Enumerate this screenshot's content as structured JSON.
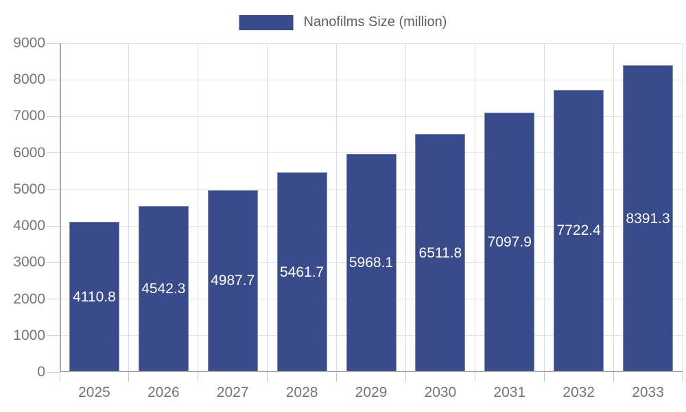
{
  "chart_data": {
    "type": "bar",
    "categories": [
      "2025",
      "2026",
      "2027",
      "2028",
      "2029",
      "2030",
      "2031",
      "2032",
      "2033"
    ],
    "series": [
      {
        "name": "Nanofilms Size (million)",
        "values": [
          4110.8,
          4542.3,
          4987.7,
          5461.7,
          5968.1,
          6511.8,
          7097.9,
          7722.4,
          8391.3
        ]
      }
    ],
    "value_labels": [
      "4110.8",
      "4542.3",
      "4987.7",
      "5461.7",
      "5968.1",
      "6511.8",
      "7097.9",
      "7722.4",
      "8391.3"
    ],
    "ylim": [
      0,
      9000
    ],
    "yticks": [
      0,
      1000,
      2000,
      3000,
      4000,
      5000,
      6000,
      7000,
      8000,
      9000
    ],
    "xlabel": "",
    "ylabel": "",
    "grid": true,
    "legend_position": "top-center",
    "bar_color": "#3a4b8c",
    "value_label_color": "#ffffff",
    "tick_label_color": "#757578",
    "legend_text_color": "#5f5f66"
  }
}
